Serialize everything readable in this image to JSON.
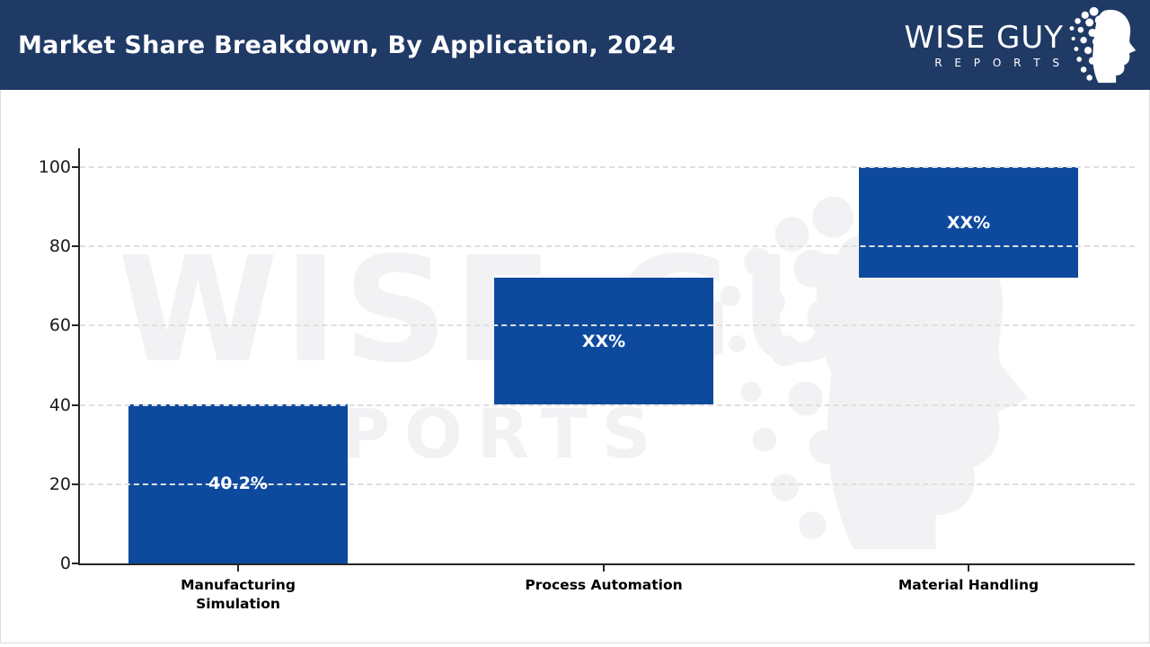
{
  "header": {
    "title": "Market Share Breakdown, By Application, 2024",
    "bg_color": "#203a66",
    "text_color": "#ffffff",
    "logo": {
      "wordmark": "WISE GUY",
      "subtext": "R E P O R T S"
    }
  },
  "watermark": {
    "line1": "WISE GUY",
    "line2": "REPORTS",
    "color": "#f2f2f4"
  },
  "chart_data": {
    "type": "bar",
    "variant": "waterfall (floating stacked segments)",
    "title": "Market Share Breakdown, By Application, 2024",
    "categories": [
      "Manufacturing Simulation",
      "Process Automation",
      "Material Handling"
    ],
    "category_label_lines": [
      [
        "Manufacturing",
        "Simulation"
      ],
      [
        "Process Automation"
      ],
      [
        "Material Handling"
      ]
    ],
    "segments": [
      {
        "category": "Manufacturing Simulation",
        "start": 0,
        "end": 40.2,
        "label": "40.2%"
      },
      {
        "category": "Process Automation",
        "start": 40.2,
        "end": 72,
        "label": "XX%"
      },
      {
        "category": "Material Handling",
        "start": 72,
        "end": 100,
        "label": "XX%"
      }
    ],
    "yticks": [
      0,
      20,
      40,
      60,
      80,
      100
    ],
    "ylim": [
      0,
      104
    ],
    "xlabel": "",
    "ylabel": "",
    "legend": "none",
    "grid": "horizontal dashed, drawn above bars",
    "bar_color": "#0d4a9e",
    "bar_label_color": "#ffffff",
    "grid_color": "#dfdfdf",
    "axis_color": "#262626",
    "tick_label_color": "#1a1a1a"
  }
}
